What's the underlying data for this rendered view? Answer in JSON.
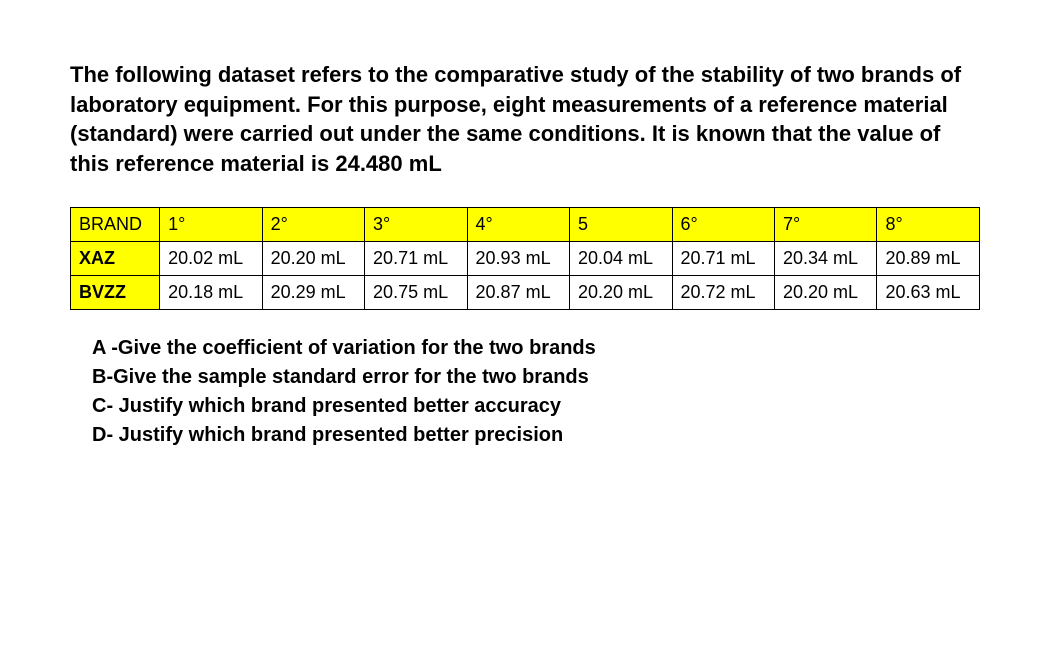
{
  "intro_text": "The following dataset refers to the comparative study of the stability of two brands of laboratory equipment. For this purpose, eight measurements of a reference material (standard) were carried out under the same conditions. It is known that the value of this reference material is 24.480 mL",
  "table": {
    "header": [
      "BRAND",
      "1°",
      "2°",
      "3°",
      "4°",
      "5",
      "6°",
      "7°",
      "8°"
    ],
    "rows": [
      {
        "label": "XAZ",
        "cells": [
          "20.02 mL",
          "20.20 mL",
          "20.71 mL",
          "20.93 mL",
          "20.04 mL",
          "20.71 mL",
          "20.34 mL",
          "20.89 mL"
        ]
      },
      {
        "label": "BVZZ",
        "cells": [
          "20.18 mL",
          "20.29 mL",
          "20.75 mL",
          "20.87 mL",
          "20.20 mL",
          "20.72 mL",
          "20.20 mL",
          "20.63 mL"
        ]
      }
    ],
    "header_bg": "#ffff00",
    "rowlabel_bg": "#ffff00",
    "border_color": "#000000"
  },
  "questions": {
    "a": "A -Give the coefficient of variation for the two brands",
    "b": "B-Give the sample standard error for the two  brands",
    "c": "C- Justify which brand presented better accuracy",
    "d": "D- Justify which brand presented better precision"
  }
}
